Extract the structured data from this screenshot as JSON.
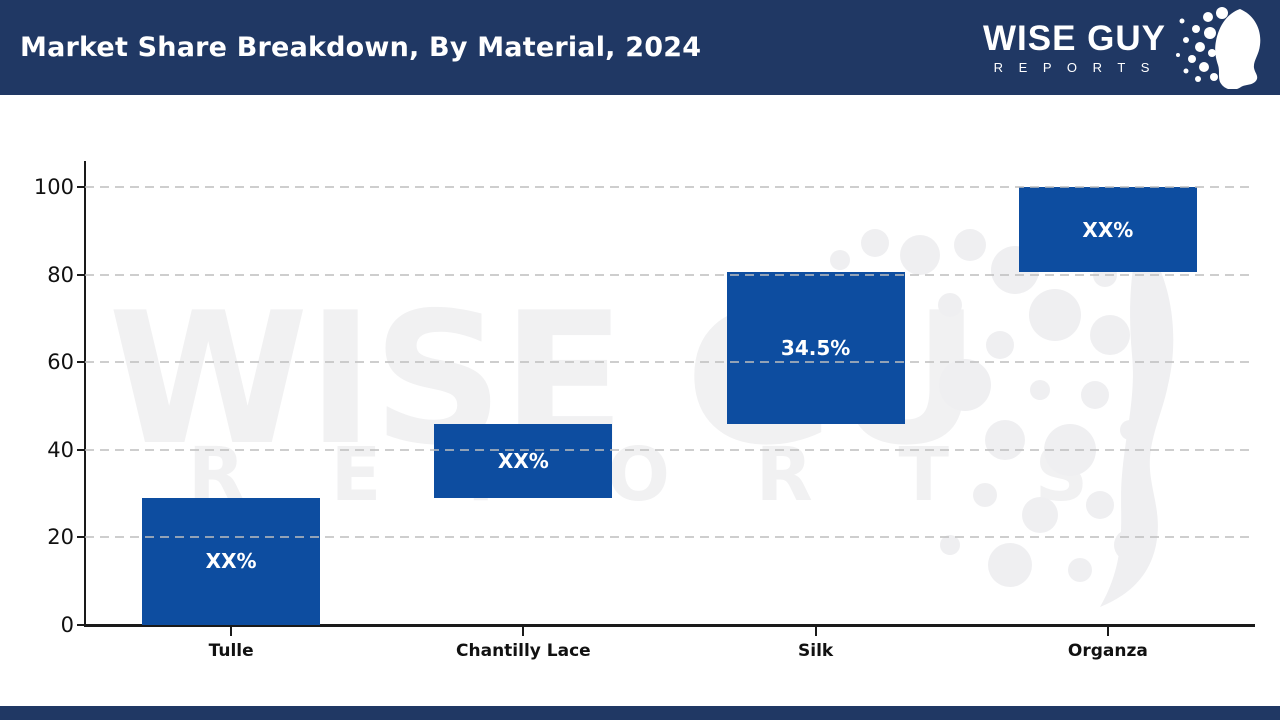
{
  "header": {
    "title": "Market Share Breakdown, By Material, 2024",
    "logo": {
      "name": "WISE GUY",
      "sub": "R E P O R T S"
    }
  },
  "watermark": {
    "line1": "WISE GU",
    "line2": "R E P O R T S"
  },
  "footer": {},
  "chart_data": {
    "type": "bar",
    "subtype": "floating-segment-waterfall",
    "title": "Market Share Breakdown, By Material, 2024",
    "categories": [
      "Tulle",
      "Chantilly Lace",
      "Silk",
      "Organza"
    ],
    "bars": [
      {
        "category": "Tulle",
        "from": 0,
        "to": 29,
        "label": "XX%"
      },
      {
        "category": "Chantilly Lace",
        "from": 29,
        "to": 46,
        "label": "XX%"
      },
      {
        "category": "Silk",
        "from": 46,
        "to": 80.5,
        "label": "34.5%"
      },
      {
        "category": "Organza",
        "from": 80.5,
        "to": 100,
        "label": "XX%"
      }
    ],
    "ylim": [
      0,
      100
    ],
    "yticks": [
      0,
      20,
      40,
      60,
      80,
      100
    ],
    "xlabel": "",
    "ylabel": "",
    "legend": null,
    "grid": "horizontal-dashed",
    "colors": {
      "bar": "#0d4da0",
      "bar_label": "#ffffff",
      "header_bg": "#203864",
      "footer_bg": "#203864",
      "grid": "#d8d8d8",
      "axis": "#1a1a1a",
      "tick_text": "#111111",
      "watermark": "#f1f1f2"
    }
  }
}
